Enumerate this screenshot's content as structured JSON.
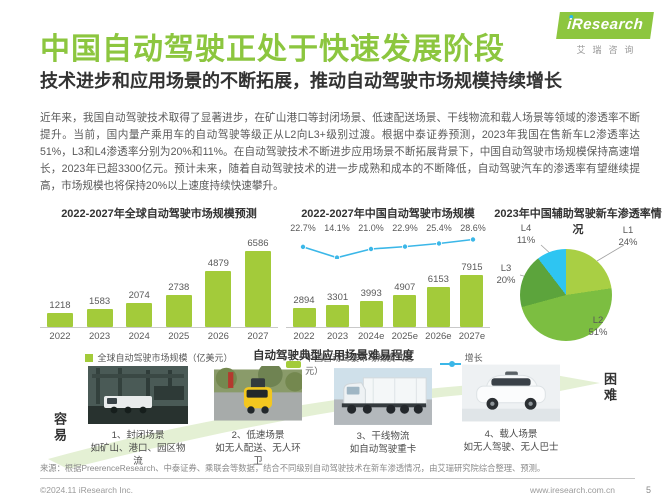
{
  "header": {
    "title": "中国自动驾驶正处于快速发展阶段",
    "subtitle": "技术进步和应用场景的不断拓展，推动自动驾驶市场规模持续增长",
    "logo": {
      "brand": "iResearch",
      "cn": "艾瑞咨询"
    }
  },
  "body": {
    "paragraph": "近年来，我国自动驾驶技术取得了显著进步，在矿山港口等封闭场景、低速配送场景、干线物流和载人场景等领域的渗透率不断提升。当前，国内量产乘用车的自动驾驶等级正从L2向L3+级别过渡。根据中泰证券预测，2023年我国在售新车L2渗透率达51%，L3和L4渗透率分别为20%和11%。在自动驾驶技术不断进步应用场景不断拓展背景下，中国自动驾驶市场规模保持高速增长，2023年已超3300亿元。预计未来，随着自动驾驶技术的进一步成熟和成本的不断降低，自动驾驶汽车的渗透率有望继续提高，市场规模也将保持20%以上速度持续快速攀升。"
  },
  "chart_data": [
    {
      "type": "bar",
      "title": "2022-2027年全球自动驾驶市场规模预测",
      "categories": [
        "2022",
        "2023",
        "2024",
        "2025",
        "2026",
        "2027"
      ],
      "values": [
        1218,
        1583,
        2074,
        2738,
        4879,
        6586
      ],
      "legend": [
        "全球自动驾驶市场规模（亿美元）"
      ],
      "ylabel": "亿美元",
      "ylim": [
        0,
        6586
      ],
      "grid": false
    },
    {
      "type": "bar+line",
      "title": "2022-2027年中国自动驾驶市场规模",
      "categories": [
        "2022",
        "2023",
        "2024e",
        "2025e",
        "2026e",
        "2027e"
      ],
      "series": [
        {
          "name": "中国自动驾驶市场规模（亿元）",
          "type": "bar",
          "values": [
            2894,
            3301,
            3993,
            4907,
            6153,
            7915
          ]
        },
        {
          "name": "增长率",
          "type": "line",
          "unit": "%",
          "values": [
            22.7,
            14.1,
            21.0,
            22.9,
            25.4,
            28.6
          ]
        }
      ],
      "legend_position": "bottom",
      "grid": false
    },
    {
      "type": "pie",
      "title": "2023年中国辅助驾驶新车渗透率情况",
      "labels": [
        "L1",
        "L2",
        "L3",
        "L4"
      ],
      "values": [
        24,
        51,
        20,
        11
      ],
      "unit": "%"
    }
  ],
  "scenarios": {
    "heading": "自动驾驶典型应用场景难易程度",
    "easy_label": "容易",
    "hard_label": "困难",
    "items": [
      {
        "title": "1、封闭场景",
        "desc": "如矿山、港口、园区物流"
      },
      {
        "title": "2、低速场景",
        "desc": "如无人配送、无人环卫"
      },
      {
        "title": "3、干线物流",
        "desc": "如自动驾驶重卡"
      },
      {
        "title": "4、载人场景",
        "desc": "如无人驾驶、无人巴士"
      }
    ]
  },
  "footer": {
    "source": "来源：根据PreerenceResearch、中泰证券、乘联会等数据，结合不同级别自动驾驶技术在新车渗透情况，由艾瑞研究院综合整理、预测。",
    "copyright": "©2024.11 iResearch Inc.",
    "website": "www.iresearch.com.cn",
    "page": "5"
  },
  "colors": {
    "title_green": "#8CC63F",
    "bar_green": "#A3CB3A",
    "line_blue": "#3BB7E8",
    "pie_l1": "#A9CF44",
    "pie_l2": "#7CBE41",
    "pie_l3": "#5CA43C",
    "pie_l4": "#2EC5F2",
    "arrow_fill": "#E4F0D4"
  }
}
